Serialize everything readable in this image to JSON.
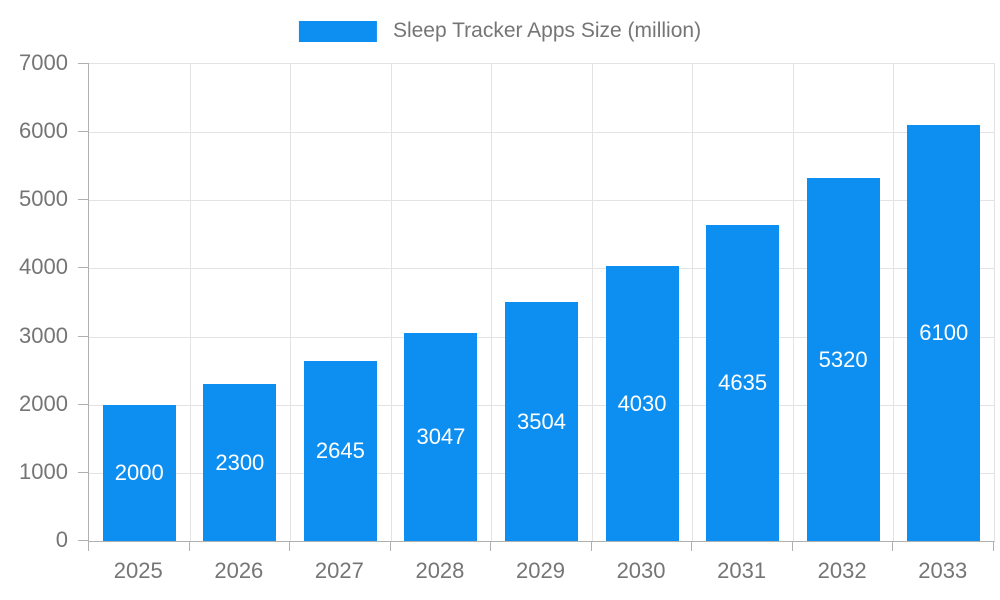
{
  "legend": {
    "label": "Sleep Tracker Apps Size (million)",
    "swatch_color": "#0d8ff2"
  },
  "chart_data": {
    "type": "bar",
    "title": "",
    "xlabel": "",
    "ylabel": "",
    "categories": [
      "2025",
      "2026",
      "2027",
      "2028",
      "2029",
      "2030",
      "2031",
      "2032",
      "2033"
    ],
    "series": [
      {
        "name": "Sleep Tracker Apps Size (million)",
        "values": [
          2000,
          2300,
          2645,
          3047,
          3504,
          4030,
          4635,
          5320,
          6100
        ]
      }
    ],
    "value_labels_visible": true,
    "value_label_position": "inside-center",
    "ylim": [
      0,
      7000
    ],
    "yticks": [
      0,
      1000,
      2000,
      3000,
      4000,
      5000,
      6000,
      7000
    ],
    "grid": true,
    "legend_position": "top-center"
  },
  "colors": {
    "bar": "#0d8ff2",
    "value_label": "#ffffff",
    "axis_label": "#757575",
    "gridline": "#e3e3e3",
    "axis_line": "#b0b0b0",
    "background": "#ffffff"
  }
}
